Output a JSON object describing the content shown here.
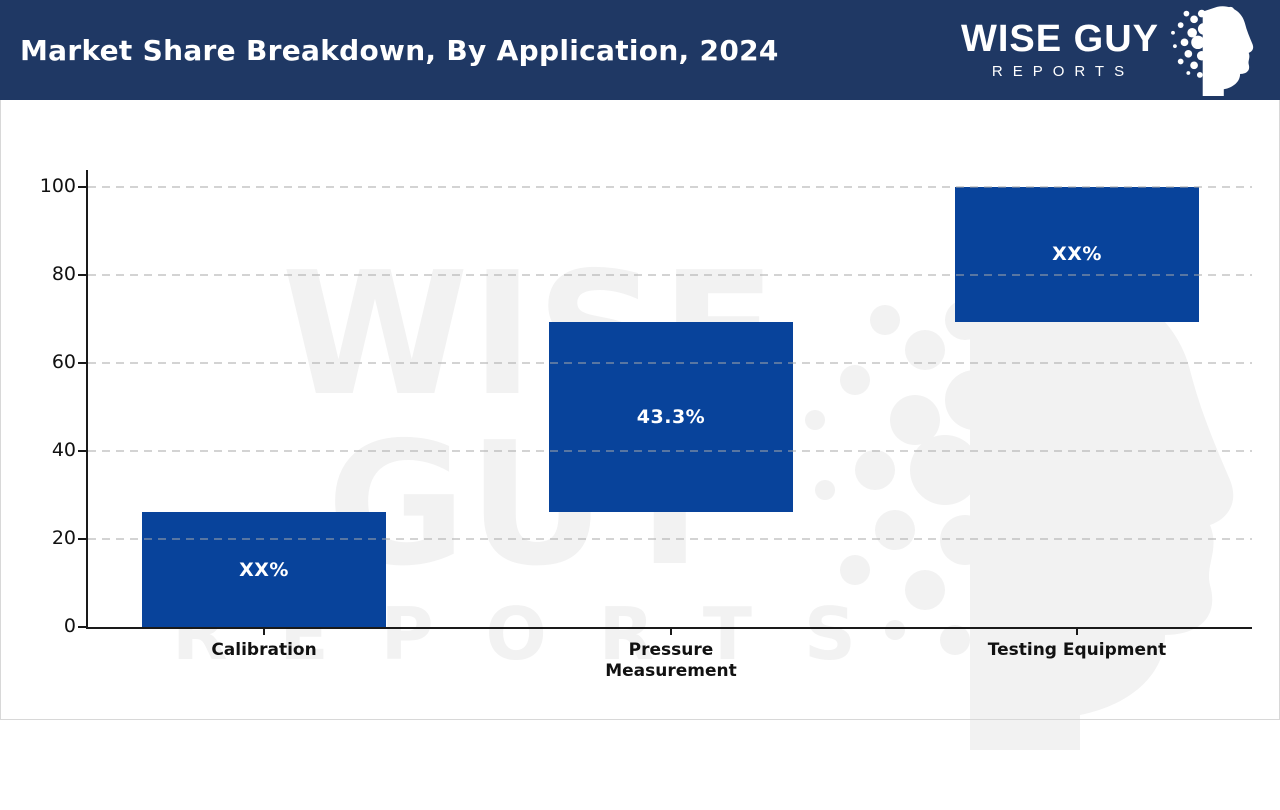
{
  "header": {
    "title": "Market Share Breakdown, By Application, 2024",
    "logo_line1": "WISE GUY",
    "logo_line2": "REPORTS",
    "bg_color": "#1f3864"
  },
  "watermark": {
    "line1": "WISE GUY",
    "line2": "REPORTS"
  },
  "chart_data": {
    "type": "bar",
    "variant": "floating-segment-waterfall",
    "title": "Market Share Breakdown, By Application, 2024",
    "categories": [
      "Calibration",
      "Pressure Measurement",
      "Testing Equipment"
    ],
    "category_label_lines": [
      [
        "Calibration"
      ],
      [
        "Pressure",
        "Measurement"
      ],
      [
        "Testing Equipment"
      ]
    ],
    "segments": [
      {
        "category": "Calibration",
        "start": 0,
        "end": 26.1,
        "label": "XX%"
      },
      {
        "category": "Pressure Measurement",
        "start": 26.1,
        "end": 69.4,
        "label": "43.3%"
      },
      {
        "category": "Testing Equipment",
        "start": 69.4,
        "end": 100,
        "label": "XX%"
      }
    ],
    "yticks": [
      0,
      20,
      40,
      60,
      80,
      100
    ],
    "ylim": [
      0,
      105
    ],
    "xlabel": "",
    "ylabel": "",
    "legend": null,
    "grid": "horizontal-dashed",
    "colors": {
      "bar": "#08439b",
      "bar_label": "#ffffff",
      "axis": "#1a1a1a",
      "grid": "#c8c8c8",
      "watermark": "#f2f2f2"
    }
  }
}
